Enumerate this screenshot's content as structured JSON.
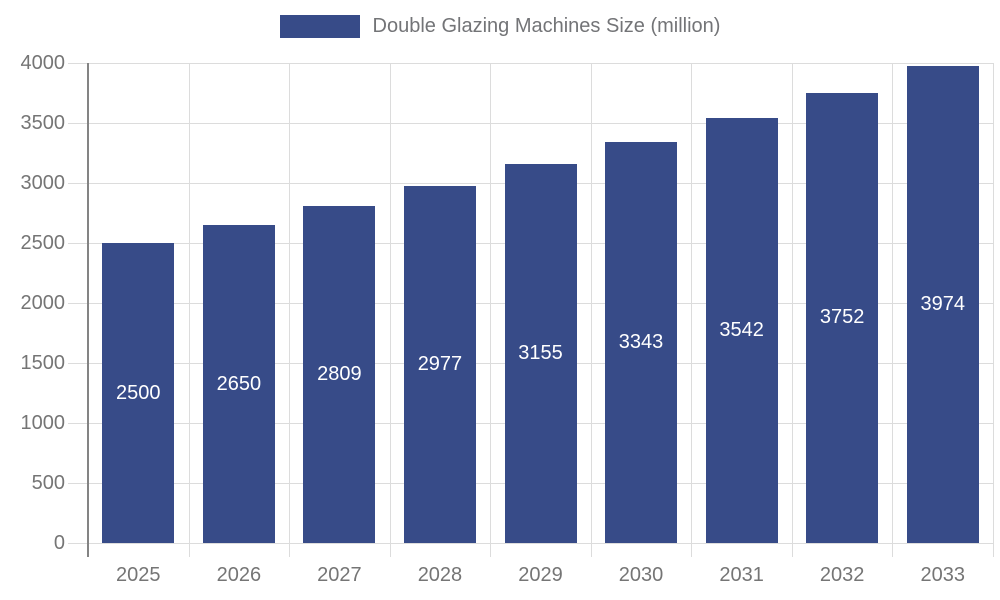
{
  "chart_data": {
    "type": "bar",
    "title": "Double Glazing Machines Size (million)",
    "legend_label": "Double Glazing Machines Size (million)",
    "legend_position": "top",
    "categories": [
      "2025",
      "2026",
      "2027",
      "2028",
      "2029",
      "2030",
      "2031",
      "2032",
      "2033"
    ],
    "values": [
      2500,
      2650,
      2809,
      2977,
      3155,
      3343,
      3542,
      3752,
      3974
    ],
    "xlabel": "",
    "ylabel": "",
    "ylim": [
      0,
      4000
    ],
    "ytick_step": 500,
    "yticks": [
      0,
      500,
      1000,
      1500,
      2000,
      2500,
      3000,
      3500,
      4000
    ],
    "grid": true,
    "bar_value_labels_inside": true,
    "colors": {
      "bar": "#374b88",
      "grid": "#dcdcdc",
      "axis_line": "#848484",
      "axis_text": "#757575",
      "bar_label": "#ffffff",
      "legend_text": "#737477"
    }
  }
}
